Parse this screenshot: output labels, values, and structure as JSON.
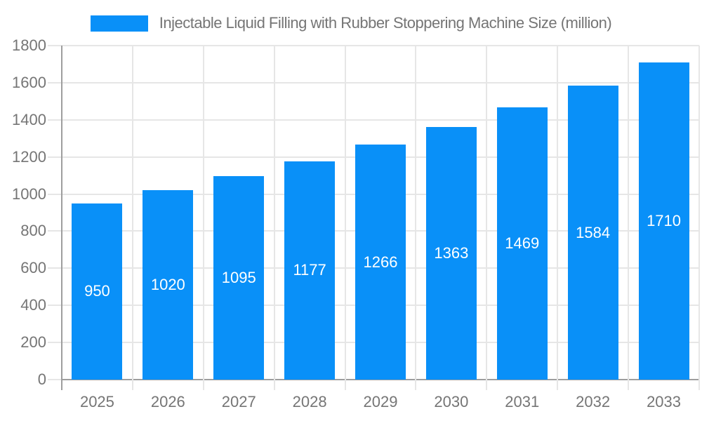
{
  "chart_data": {
    "type": "bar",
    "title": "Injectable Liquid Filling with Rubber Stoppering Machine Size (million)",
    "categories": [
      "2025",
      "2026",
      "2027",
      "2028",
      "2029",
      "2030",
      "2031",
      "2032",
      "2033"
    ],
    "values": [
      950,
      1020,
      1095,
      1177,
      1266,
      1363,
      1469,
      1584,
      1710
    ],
    "xlabel": "",
    "ylabel": "",
    "ylim": [
      0,
      1800
    ],
    "ytick_step": 200,
    "ytick_labels": [
      "0",
      "200",
      "400",
      "600",
      "800",
      "1000",
      "1200",
      "1400",
      "1600",
      "1800"
    ],
    "grid": true,
    "legend_position": "top",
    "value_labels_shown": true,
    "colors": {
      "bar": "#0990f8",
      "axis_text": "#757575",
      "grid_line": "#e6e6e6",
      "axis_line": "#9e9e9e",
      "value_label": "#ffffff",
      "background": "#ffffff"
    }
  }
}
